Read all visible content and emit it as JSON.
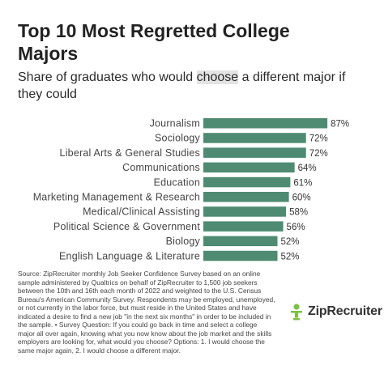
{
  "title": "Top 10 Most Regretted College Majors",
  "subtitle_pre": "Share of graduates who would ",
  "subtitle_highlight": "choose",
  "subtitle_post": " a different major if they could",
  "chart_data": {
    "type": "bar",
    "orientation": "horizontal",
    "categories": [
      "Journalism",
      "Sociology",
      "Liberal Arts & General Studies",
      "Communications",
      "Education",
      "Marketing Management & Research",
      "Medical/Clinical Assisting",
      "Political Science & Government",
      "Biology",
      "English Language & Literature"
    ],
    "values": [
      87,
      72,
      72,
      64,
      61,
      60,
      58,
      56,
      52,
      52
    ],
    "value_labels": [
      "87%",
      "72%",
      "72%",
      "64%",
      "61%",
      "60%",
      "58%",
      "56%",
      "52%",
      "52%"
    ],
    "unit": "%",
    "xlim": [
      0,
      100
    ],
    "grid": false,
    "bar_color": "#4e8b72"
  },
  "source": "Source: ZipRecruiter monthly Job Seeker Confidence Survey based on an online sample administered by Qualtrics on behalf of ZipRecruiter to 1,500 job seekers between the 10th and 16th each month of 2022 and weighted to the U.S. Census Bureau's American Community Survey. Respondents may be employed, unemployed, or not currently in the labor force, but must reside in the United States and have indicated a desire to find a new job \"in the next six months\" in order to be included in the sample. • Survey Question: If you could go back in time and select a college major all over again, knowing what you now know about the job market and the skills employers are looking for, what would you choose? Options: 1. I would choose the same major again, 2. I would choose a different major.",
  "logo": {
    "text": "ZipRecruiter",
    "icon": "ziprecruiter-person-icon",
    "color": "#7ac143"
  }
}
